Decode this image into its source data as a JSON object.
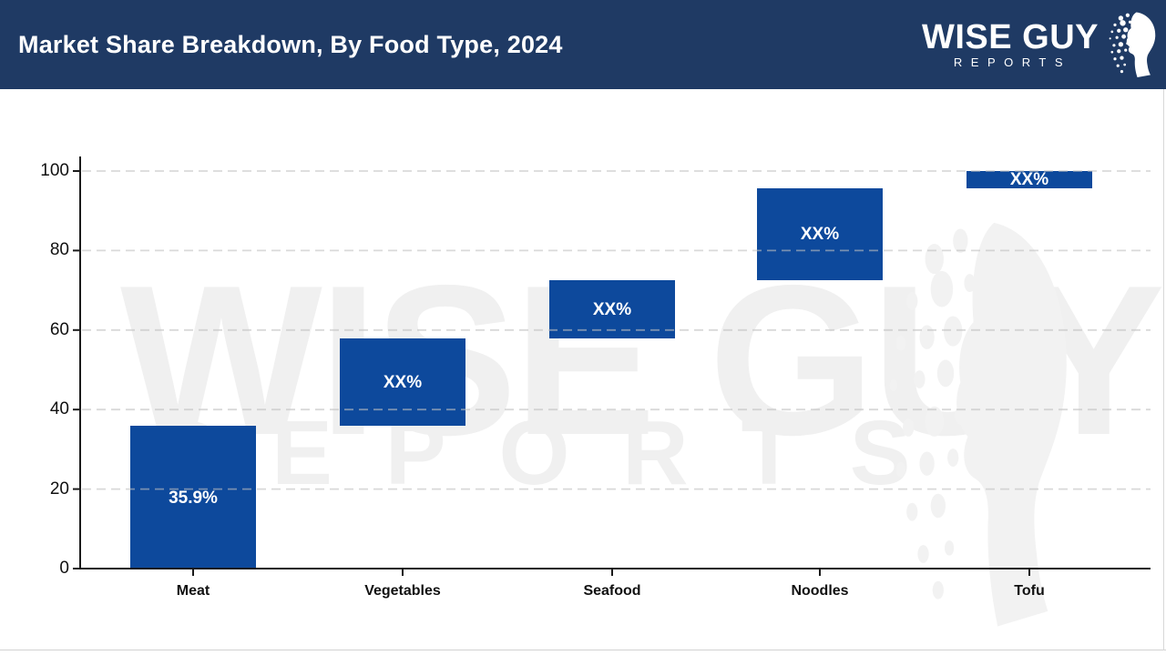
{
  "header": {
    "title": "Market Share Breakdown, By Food Type, 2024",
    "logo": {
      "line1": "WISE GUY",
      "line2": "REPORTS"
    }
  },
  "watermark": {
    "line1": "WISE GUY",
    "line2": "REPORTS"
  },
  "chart_data": {
    "type": "bar",
    "subtype": "waterfall",
    "title": "Market Share Breakdown, By Food Type, 2024",
    "categories": [
      "Meat",
      "Vegetables",
      "Seafood",
      "Noodles",
      "Tofu"
    ],
    "segments": [
      {
        "category": "Meat",
        "start": 0,
        "end": 35.9,
        "value": 35.9,
        "label": "35.9%"
      },
      {
        "category": "Vegetables",
        "start": 35.9,
        "end": 57.9,
        "value": 22.0,
        "label": "XX%"
      },
      {
        "category": "Seafood",
        "start": 57.9,
        "end": 72.5,
        "value": 14.6,
        "label": "XX%"
      },
      {
        "category": "Noodles",
        "start": 72.5,
        "end": 95.7,
        "value": 23.2,
        "label": "XX%"
      },
      {
        "category": "Tofu",
        "start": 95.7,
        "end": 100,
        "value": 4.3,
        "label": "XX%"
      }
    ],
    "yticks": [
      0,
      20,
      40,
      60,
      80,
      100
    ],
    "gridline_ticks": [
      20,
      40,
      60,
      80,
      100
    ],
    "ylim": [
      0,
      103.7
    ],
    "xlabel": "",
    "ylabel": "",
    "grid": "horizontal dashed",
    "legend": "none",
    "bar_color": "#0d499c",
    "bar_label_color": "#ffffff"
  },
  "colors": {
    "header_bg": "#1f3a64",
    "bar": "#0d499c",
    "grid": "#bfbfbf",
    "axis": "#1a1a1a",
    "watermark": "#f0f0f0",
    "background": "#ffffff"
  }
}
